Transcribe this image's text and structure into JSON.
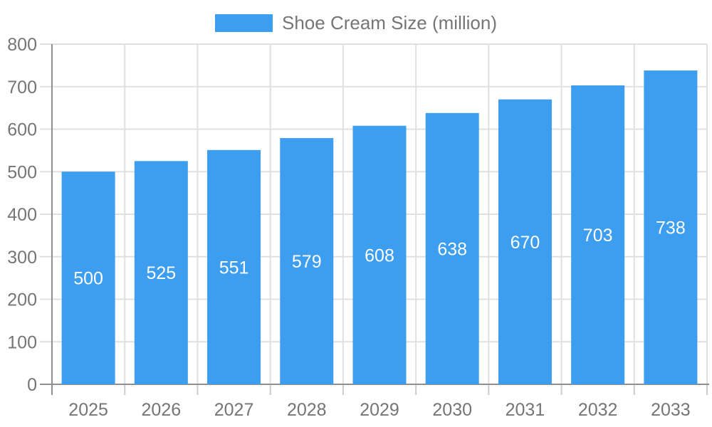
{
  "chart_data": {
    "type": "bar",
    "title": "Shoe Cream Size (million)",
    "categories": [
      "2025",
      "2026",
      "2027",
      "2028",
      "2029",
      "2030",
      "2031",
      "2032",
      "2033"
    ],
    "values": [
      500,
      525,
      551,
      579,
      608,
      638,
      670,
      703,
      738
    ],
    "xlabel": "",
    "ylabel": "",
    "ylim": [
      0,
      800
    ],
    "ytick_step": 100,
    "grid": true,
    "legend_position": "top-center",
    "bar_color": "#3D9DEF",
    "value_label_color": "#FFFFFF",
    "axis_text_color": "#757575",
    "grid_color": "#E0E0E0",
    "axis_line_color": "#8F8F8F",
    "tick_color": "#CCCCCC"
  }
}
